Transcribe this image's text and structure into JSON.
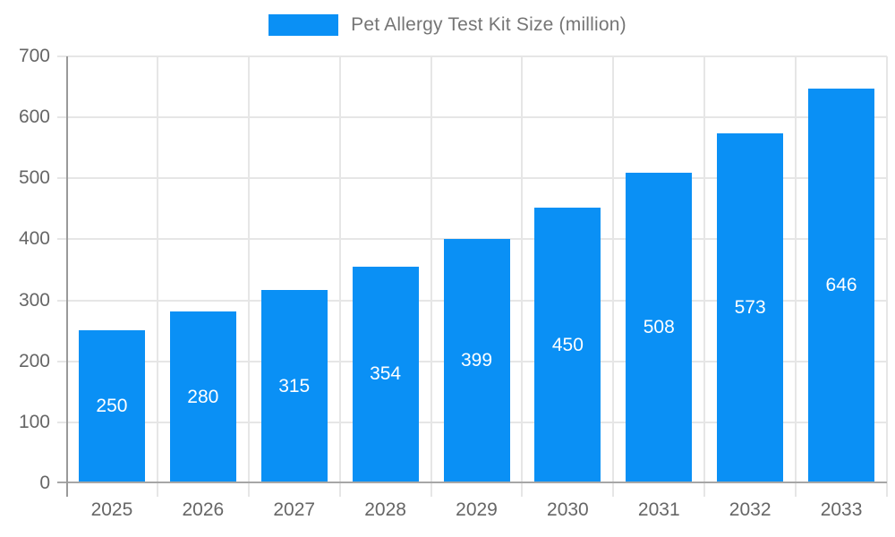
{
  "legend": {
    "label": "Pet Allergy Test Kit Size (million)",
    "swatch_color": "#0a90f5"
  },
  "chart_data": {
    "type": "bar",
    "title": "Pet Allergy Test Kit Size (million)",
    "categories": [
      "2025",
      "2026",
      "2027",
      "2028",
      "2029",
      "2030",
      "2031",
      "2032",
      "2033"
    ],
    "values": [
      250,
      280,
      315,
      354,
      399,
      450,
      508,
      573,
      646
    ],
    "xlabel": "",
    "ylabel": "",
    "ylim": [
      0,
      700
    ],
    "yticks": [
      0,
      100,
      200,
      300,
      400,
      500,
      600,
      700
    ],
    "grid": true,
    "legend_position": "top",
    "bar_color": "#0a90f5",
    "value_label_color": "#ffffff",
    "value_label_position": "center-inside"
  },
  "colors": {
    "background": "#ffffff",
    "grid_line": "#e6e6e6",
    "axis_line": "#9a9a9a",
    "tick_text": "#666666",
    "legend_text": "#757575"
  }
}
